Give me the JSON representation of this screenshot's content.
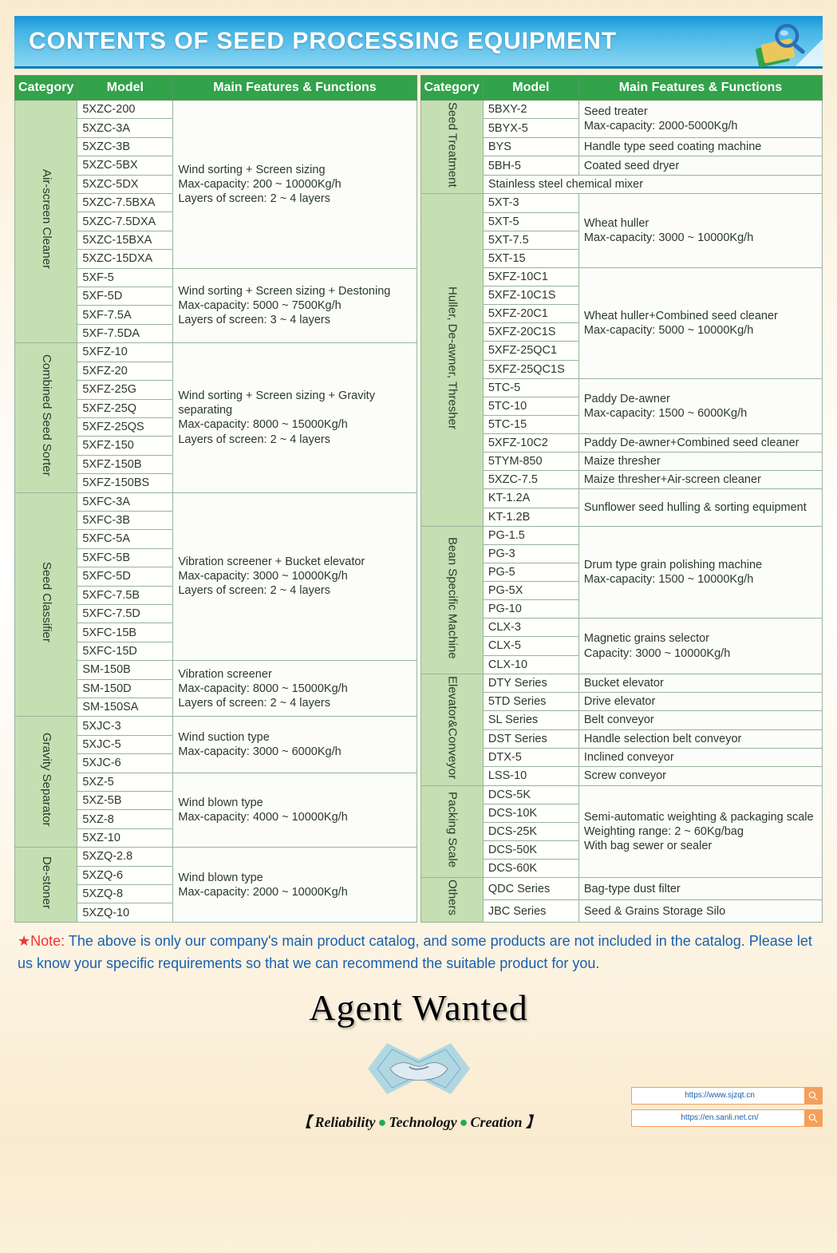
{
  "banner": {
    "title": "CONTENTS OF SEED PROCESSING EQUIPMENT",
    "bgGradientTop": "#1894d7",
    "bgGradientBottom": "#89d6f2",
    "underlineColor": "#0b7ab6",
    "iconColors": {
      "book": "#2fa44a",
      "glass": "#2a6fb5"
    }
  },
  "headers": {
    "category": "Category",
    "model": "Model",
    "features": "Main Features & Functions"
  },
  "colors": {
    "headerBg": "#32a24b",
    "headerText": "#ffffff",
    "catBg": "#c5dfb3",
    "border": "#97b49a",
    "cellBg": "#fcfdfa"
  },
  "left": [
    {
      "category": "Air-screen Cleaner",
      "groups": [
        {
          "models": [
            "5XZC-200",
            "5XZC-3A",
            "5XZC-3B",
            "5XZC-5BX",
            "5XZC-5DX",
            "5XZC-7.5BXA",
            "5XZC-7.5DXA",
            "5XZC-15BXA",
            "5XZC-15DXA"
          ],
          "features": "Wind sorting + Screen sizing\nMax-capacity: 200 ~ 10000Kg/h\nLayers of screen: 2 ~ 4 layers"
        },
        {
          "models": [
            "5XF-5",
            "5XF-5D",
            "5XF-7.5A",
            "5XF-7.5DA"
          ],
          "features": "Wind sorting + Screen sizing + Destoning\nMax-capacity: 5000 ~ 7500Kg/h\nLayers of screen: 3 ~ 4 layers"
        }
      ]
    },
    {
      "category": "Combined Seed Sorter",
      "groups": [
        {
          "models": [
            "5XFZ-10",
            "5XFZ-20",
            "5XFZ-25G",
            "5XFZ-25Q",
            "5XFZ-25QS",
            "5XFZ-150",
            "5XFZ-150B",
            "5XFZ-150BS"
          ],
          "features": "Wind sorting + Screen sizing + Gravity separating\nMax-capacity: 8000 ~ 15000Kg/h\nLayers of screen: 2 ~ 4 layers"
        }
      ]
    },
    {
      "category": "Seed Classifier",
      "groups": [
        {
          "models": [
            "5XFC-3A",
            "5XFC-3B",
            "5XFC-5A",
            "5XFC-5B",
            "5XFC-5D",
            "5XFC-7.5B",
            "5XFC-7.5D",
            "5XFC-15B",
            "5XFC-15D"
          ],
          "features": "Vibration screener + Bucket elevator\nMax-capacity: 3000 ~ 10000Kg/h\nLayers of screen: 2 ~ 4 layers"
        },
        {
          "models": [
            "SM-150B",
            "SM-150D",
            "SM-150SA"
          ],
          "features": "Vibration screener\nMax-capacity: 8000 ~ 15000Kg/h\nLayers of screen: 2 ~ 4 layers"
        }
      ]
    },
    {
      "category": "Gravity Separator",
      "groups": [
        {
          "models": [
            "5XJC-3",
            "5XJC-5",
            "5XJC-6"
          ],
          "features": "Wind suction type\nMax-capacity: 3000 ~ 6000Kg/h"
        },
        {
          "models": [
            "5XZ-5",
            "5XZ-5B",
            "5XZ-8",
            "5XZ-10"
          ],
          "features": "Wind blown type\nMax-capacity: 4000 ~ 10000Kg/h"
        }
      ]
    },
    {
      "category": "De-stoner",
      "groups": [
        {
          "models": [
            "5XZQ-2.8",
            "5XZQ-6",
            "5XZQ-8",
            "5XZQ-10"
          ],
          "features": "Wind blown type\nMax-capacity: 2000 ~ 10000Kg/h"
        }
      ]
    }
  ],
  "right": [
    {
      "category": "Seed Treatment",
      "groups": [
        {
          "models": [
            "5BXY-2",
            "5BYX-5"
          ],
          "features": "Seed treater\nMax-capacity: 2000-5000Kg/h"
        },
        {
          "models": [
            "BYS"
          ],
          "features": "Handle type seed coating machine"
        },
        {
          "models": [
            "5BH-5"
          ],
          "features": "Coated seed dryer"
        },
        {
          "models": [
            ""
          ],
          "spanModelIntoFeature": true,
          "features": "Stainless steel chemical mixer"
        }
      ]
    },
    {
      "category": "Huller, De-awner, Thresher",
      "groups": [
        {
          "models": [
            "5XT-3",
            "5XT-5",
            "5XT-7.5",
            "5XT-15"
          ],
          "features": "Wheat huller\nMax-capacity: 3000 ~ 10000Kg/h"
        },
        {
          "models": [
            "5XFZ-10C1",
            "5XFZ-10C1S",
            "5XFZ-20C1",
            "5XFZ-20C1S",
            "5XFZ-25QC1",
            "5XFZ-25QC1S"
          ],
          "features": "Wheat huller+Combined seed cleaner\nMax-capacity: 5000 ~ 10000Kg/h"
        },
        {
          "models": [
            "5TC-5",
            "5TC-10",
            "5TC-15"
          ],
          "features": "Paddy De-awner\nMax-capacity:  1500 ~ 6000Kg/h"
        },
        {
          "models": [
            "5XFZ-10C2"
          ],
          "features": "Paddy De-awner+Combined seed cleaner"
        },
        {
          "models": [
            "5TYM-850"
          ],
          "features": "Maize thresher"
        },
        {
          "models": [
            "5XZC-7.5"
          ],
          "features": "Maize thresher+Air-screen cleaner"
        },
        {
          "models": [
            "KT-1.2A",
            "KT-1.2B"
          ],
          "features": "Sunflower seed hulling & sorting equipment"
        }
      ]
    },
    {
      "category": "Bean Specific Machine",
      "groups": [
        {
          "models": [
            "PG-1.5",
            "PG-3",
            "PG-5",
            "PG-5X",
            "PG-10"
          ],
          "features": "Drum type grain polishing machine\nMax-capacity: 1500 ~ 10000Kg/h"
        },
        {
          "models": [
            "CLX-3",
            "CLX-5",
            "CLX-10"
          ],
          "features": "Magnetic grains selector\nCapacity: 3000 ~ 10000Kg/h"
        }
      ]
    },
    {
      "category": "Elevator&Conveyor",
      "groups": [
        {
          "models": [
            "DTY Series"
          ],
          "features": "Bucket elevator"
        },
        {
          "models": [
            "5TD Series"
          ],
          "features": "Drive elevator"
        },
        {
          "models": [
            "SL Series"
          ],
          "features": "Belt conveyor"
        },
        {
          "models": [
            "DST Series"
          ],
          "features": "Handle selection belt conveyor"
        },
        {
          "models": [
            "DTX-5"
          ],
          "features": "Inclined conveyor"
        },
        {
          "models": [
            "LSS-10"
          ],
          "features": "Screw conveyor"
        }
      ]
    },
    {
      "category": "Packing Scale",
      "groups": [
        {
          "models": [
            "DCS-5K",
            "DCS-10K",
            "DCS-25K",
            "DCS-50K",
            "DCS-60K"
          ],
          "features": "Semi-automatic weighting & packaging scale\nWeighting range: 2 ~ 60Kg/bag\nWith bag sewer or sealer"
        }
      ]
    },
    {
      "category": "Others",
      "groups": [
        {
          "models": [
            "QDC Series"
          ],
          "features": "Bag-type dust filter"
        },
        {
          "models": [
            "JBC Series"
          ],
          "features": "Seed & Grains Storage Silo"
        }
      ]
    }
  ],
  "note": {
    "star": "★",
    "label": "Note:",
    "text": " The above is only our company's main product catalog, and some products are not included in the catalog. Please let us know your specific requirements so that we can recommend the suitable product for you."
  },
  "agent": {
    "title": "Agent Wanted",
    "tagline": [
      "Reliability",
      "Technology",
      "Creation"
    ],
    "bracketL": "【",
    "bracketR": "】"
  },
  "searchBoxes": [
    {
      "url": "https://www.sjzqt.cn"
    },
    {
      "url": "https://en.sanli.net.cn/"
    }
  ]
}
